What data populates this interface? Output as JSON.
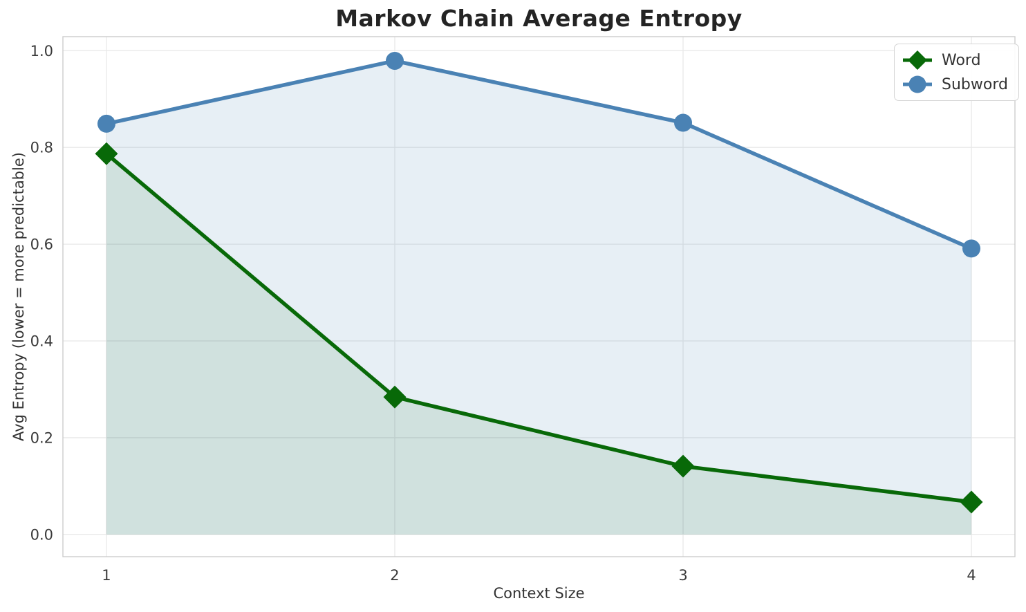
{
  "chart_data": {
    "type": "line",
    "title": "Markov Chain Average Entropy",
    "xlabel": "Context Size",
    "ylabel": "Avg Entropy (lower = more predictable)",
    "x": [
      1,
      2,
      3,
      4
    ],
    "xlim": [
      0.849,
      4.151
    ],
    "ylim": [
      -0.046,
      1.029
    ],
    "grid": true,
    "legend_position": "upper right",
    "xticks": [
      {
        "label": "1",
        "value": 1
      },
      {
        "label": "2",
        "value": 2
      },
      {
        "label": "3",
        "value": 3
      },
      {
        "label": "4",
        "value": 4
      }
    ],
    "yticks": [
      {
        "label": "0.0",
        "value": 0.0
      },
      {
        "label": "0.2",
        "value": 0.2
      },
      {
        "label": "0.4",
        "value": 0.4
      },
      {
        "label": "0.6",
        "value": 0.6
      },
      {
        "label": "0.8",
        "value": 0.8
      },
      {
        "label": "1.0",
        "value": 1.0
      }
    ],
    "series": [
      {
        "name": "Word",
        "marker": "diamond",
        "color": "#086908",
        "area_fill": "rgba(0,100,0,0.10)",
        "values": [
          0.787,
          0.284,
          0.141,
          0.067
        ]
      },
      {
        "name": "Subword",
        "marker": "circle",
        "color": "#4a82b4",
        "area_fill": "rgba(70,130,180,0.13)",
        "values": [
          0.849,
          0.979,
          0.851,
          0.591
        ]
      }
    ]
  },
  "style_colors": {
    "gridline": "#e8e8e8",
    "plot_border": "#cccccc",
    "tick_text": "#3a3a3a",
    "title_text": "#242424"
  }
}
